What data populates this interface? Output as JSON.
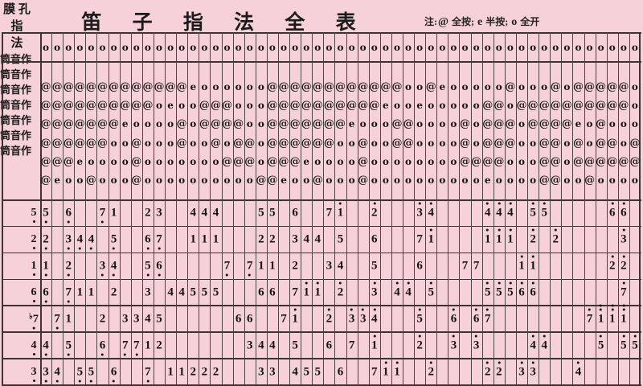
{
  "title": "笛 子 指 法 全 表",
  "colors": {
    "background": "#f6d2d8",
    "grid_line": "#4f4444",
    "text": "#141414"
  },
  "chart_data": {
    "type": "table",
    "title": "笛子指法全表",
    "legend": {
      "prefix": "注:",
      "items": [
        {
          "symbol": "@",
          "label": "全按;"
        },
        {
          "symbol": "e",
          "label": "半按;"
        },
        {
          "symbol": "o",
          "label": "全开"
        }
      ]
    },
    "row_headers": {
      "membrane": "膜 孔",
      "fingering_char1": "指",
      "fingering_char2": "法"
    },
    "columns": 53,
    "membrane_symbol": "o",
    "fingering_hole_rows": 6,
    "fingering_columns": [
      "@@@@@@",
      "@@@@@e",
      "@@@@@o",
      "@@@@eo",
      "@@@@o@",
      "@@@@oo",
      "@@@ooo",
      "@@eooo",
      "@@o@@@",
      "@@oooo",
      "@ooooo",
      "@eoooo",
      "@o@@oo",
      "eooooo",
      "o@@ooo",
      "o@@@oo",
      "o@@o@o",
      "oo@@@o",
      "ooo@@o",
      "ooooo@",
      "@@@@@@",
      "@@@@@e",
      "@@@@@o",
      "@@@@eo",
      "@@@@o@",
      "@@@@oo",
      "@@@ooo",
      "@@eooo",
      "@@o@@@",
      "@@oooo",
      "@eoooo",
      "@o@@oo",
      "oo@@oo",
      "oeoooo",
      "@ooooo",
      "eooooo",
      "oooooo",
      "oo@@@o",
      "oooo@o",
      "o@@@@e",
      "o@@@@o",
      "@o@@oo",
      "o@oooo",
      "o@@ooo",
      "o@@@@@",
      "@@@@@@",
      "o@@ooo",
      "@@e@@o",
      "@@oo@@",
      "@@@@@o",
      "@@o@@o",
      "@@oo@o",
      "ooo@@o"
    ],
    "note_rows": [
      {
        "label_prefix": "筒音作",
        "label_note": "5l",
        "cells": {
          "1": "5l",
          "3": "6l",
          "6": "7l",
          "7": "1",
          "10": "2",
          "11": "3",
          "14": "4",
          "15": "4",
          "16": "4",
          "20": "5",
          "21": "5",
          "23": "6",
          "26": "7",
          "27": "1h",
          "30": "2h",
          "34": "3h",
          "35": "4h",
          "40": "4h",
          "41": "4h",
          "42": "4h",
          "44": "5h",
          "45": "5h",
          "51": "6h",
          "52": "6h"
        }
      },
      {
        "label_prefix": "筒音作",
        "label_note": "2l",
        "cells": {
          "1": "2l",
          "3": "3l",
          "4": "4l",
          "5": "4l",
          "7": "5l",
          "10": "6l",
          "11": "7l",
          "14": "1",
          "15": "1",
          "16": "1",
          "20": "2",
          "21": "2",
          "23": "3",
          "24": "4",
          "25": "4",
          "27": "5",
          "30": "6",
          "34": "7",
          "35": "1h",
          "40": "1h",
          "41": "1h",
          "42": "1h",
          "44": "2h",
          "46": "2h",
          "52": "3h"
        }
      },
      {
        "label_prefix": "筒音作",
        "label_note": "1l",
        "cells": {
          "1": "1l",
          "3": "2l",
          "6": "3l",
          "7": "4l",
          "10": "5l",
          "11": "6l",
          "17": "7l",
          "19": "7l",
          "20": "1",
          "21": "1",
          "23": "2",
          "26": "3",
          "27": "4",
          "30": "5",
          "34": "6",
          "38": "7",
          "39": "7",
          "43": "1h",
          "44": "1h",
          "51": "2h",
          "52": "2h"
        }
      },
      {
        "label_prefix": "筒音作",
        "label_note": "6l",
        "cells": {
          "1": "6l",
          "3": "7l",
          "4": "1",
          "5": "1",
          "7": "2",
          "10": "3",
          "12": "4",
          "13": "4",
          "14": "5",
          "15": "5",
          "16": "5",
          "20": "6",
          "21": "6",
          "23": "7",
          "24": "1h",
          "25": "1h",
          "27": "2h",
          "30": "3h",
          "32": "4h",
          "33": "4h",
          "35": "5h",
          "40": "5h",
          "41": "5h",
          "42": "5h",
          "43": "6h",
          "44": "6h",
          "52": "7h"
        }
      },
      {
        "label_prefix": "筒音作",
        "label_note": "b7l",
        "cells": {
          "2": "7l",
          "3": "1",
          "6": "2",
          "8": "3",
          "9": "3",
          "10": "4",
          "11": "5",
          "18": "6",
          "19": "6",
          "22": "7",
          "23": "1h",
          "26": "2h",
          "28": "3h",
          "29": "3h",
          "30": "4h",
          "34": "5h",
          "37": "6h",
          "39": "6h",
          "40": "7h",
          "49": "7h",
          "50": "1hh",
          "51": "1hh",
          "52": "1hh"
        }
      },
      {
        "label_prefix": "筒音作",
        "label_note": "4l",
        "cells": {
          "1": "4l",
          "3": "5l",
          "6": "6l",
          "8": "7l",
          "9": "7l",
          "10": "1",
          "11": "2",
          "19": "3",
          "20": "4",
          "21": "4",
          "23": "5",
          "26": "6",
          "28": "7",
          "30": "1h",
          "34": "2h",
          "37": "3h",
          "39": "3h",
          "44": "4h",
          "45": "4h",
          "50": "5h",
          "52": "5h",
          "53": "5h"
        }
      },
      {
        "label_prefix": "筒音作",
        "label_note": "3l",
        "cells": {
          "1": "3l",
          "2": "4l",
          "4": "5l",
          "5": "5l",
          "7": "6l",
          "10": "7l",
          "12": "1",
          "13": "1",
          "14": "2",
          "15": "2",
          "16": "2",
          "20": "3",
          "21": "3",
          "23": "4",
          "24": "5",
          "25": "5",
          "27": "6",
          "30": "7",
          "31": "1h",
          "32": "1h",
          "35": "2h",
          "40": "2h",
          "41": "2h",
          "43": "3h",
          "44": "3h",
          "48": "4h"
        }
      }
    ]
  }
}
